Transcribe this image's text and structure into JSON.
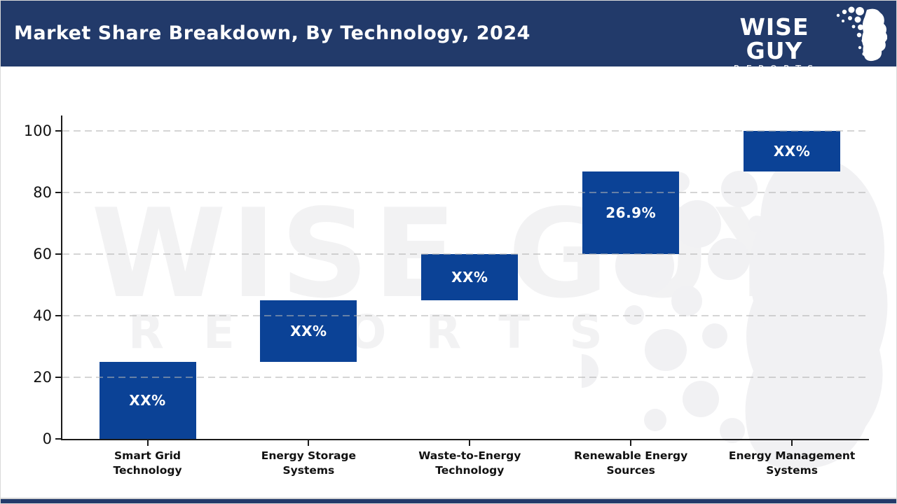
{
  "header": {
    "title": "Market Share Breakdown, By Technology, 2024",
    "logo": {
      "line1": "WISE GUY",
      "line2": "REPORTS"
    }
  },
  "watermark": {
    "line1": "WISE GUY",
    "line2": "REPORTS"
  },
  "colors": {
    "header_bg": "#223a6a",
    "bar": "#0b4296",
    "footer_bg": "#223a6a",
    "watermark": "#f2f2f3"
  },
  "chart_data": {
    "type": "bar",
    "subtype": "floating-waterfall",
    "title": "Market Share Breakdown, By Technology, 2024",
    "categories": [
      "Smart Grid Technology",
      "Energy Storage Systems",
      "Waste-to-Energy Technology",
      "Renewable Energy Sources",
      "Energy Management Systems"
    ],
    "category_lines": [
      [
        "Smart Grid",
        "Technology"
      ],
      [
        "Energy Storage",
        "Systems"
      ],
      [
        "Waste-to-Energy",
        "Technology"
      ],
      [
        "Renewable Energy",
        "Sources"
      ],
      [
        "Energy Management",
        "Systems"
      ]
    ],
    "bars": [
      {
        "label": "XX%",
        "start": 0,
        "end": 25
      },
      {
        "label": "XX%",
        "start": 25,
        "end": 45
      },
      {
        "label": "XX%",
        "start": 45,
        "end": 60
      },
      {
        "label": "26.9%",
        "start": 60,
        "end": 86.9
      },
      {
        "label": "XX%",
        "start": 86.9,
        "end": 100
      }
    ],
    "xlabel": "",
    "ylabel": "",
    "ylim": [
      0,
      100
    ],
    "yticks": [
      0,
      20,
      40,
      60,
      80,
      100
    ],
    "grid": "dashed-horizontal",
    "legend": "none",
    "bar_color": "#0b4296"
  }
}
